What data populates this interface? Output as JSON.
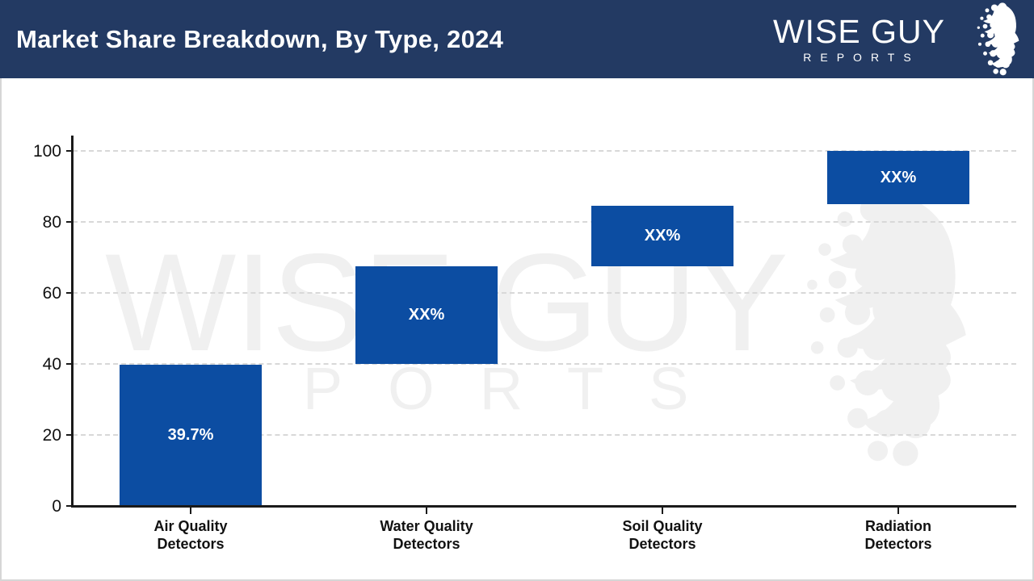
{
  "header": {
    "title": "Market Share Breakdown, By Type, 2024",
    "background_color": "#233a63",
    "logo": {
      "line1": "WISE GUY",
      "line2": "REPORTS"
    }
  },
  "watermark": {
    "line1": "WISE GUY",
    "line2": "REPORTS"
  },
  "chart_data": {
    "type": "bar",
    "subtype": "waterfall (floating stacked segments)",
    "title": "Market Share Breakdown, By Type, 2024",
    "categories": [
      "Air Quality\nDetectors",
      "Water Quality\nDetectors",
      "Soil Quality\nDetectors",
      "Radiation\nDetectors"
    ],
    "segments": [
      {
        "category": "Air Quality Detectors",
        "from": 0,
        "to": 39.7,
        "label": "39.7%"
      },
      {
        "category": "Water Quality Detectors",
        "from": 40,
        "to": 67.5,
        "label": "XX%"
      },
      {
        "category": "Soil Quality Detectors",
        "from": 67.5,
        "to": 84.5,
        "label": "XX%"
      },
      {
        "category": "Radiation Detectors",
        "from": 85,
        "to": 100,
        "label": "XX%"
      }
    ],
    "xlabel": "",
    "ylabel": "",
    "ylim": [
      0,
      100
    ],
    "yticks": [
      0,
      20,
      40,
      60,
      80,
      100
    ],
    "grid": "horizontal dashed",
    "legend": "none",
    "colors": {
      "bar": "#0c4da2",
      "bar_label": "#ffffff",
      "axis": "#1a1a1a",
      "gridline": "#d8d8d8",
      "tick_label": "#111111"
    }
  }
}
